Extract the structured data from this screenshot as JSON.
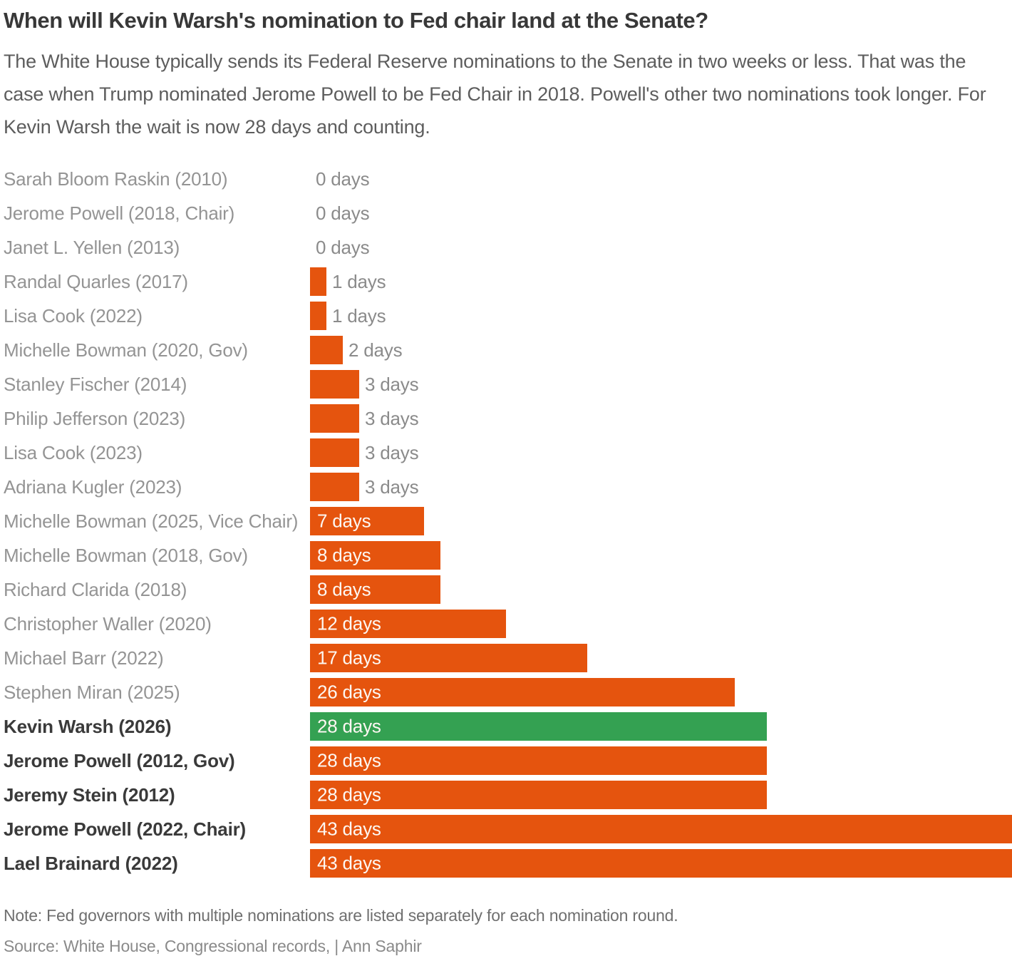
{
  "header": {
    "title": "When will Kevin Warsh's nomination to Fed chair land at the Senate?",
    "subtitle": "The White House typically sends its Federal Reserve nominations to the Senate in two weeks or less. That was the case when Trump nominated Jerome Powell to be Fed Chair in 2018. Powell's other two nominations took longer. For Kevin Warsh the wait is now 28 days and counting."
  },
  "footer": {
    "note": "Note: Fed governors with multiple nominations are listed separately for each nomination round.",
    "source": "Source: White House, Congressional records,  | Ann Saphir"
  },
  "colors": {
    "bar_orange": "#E5540E",
    "bar_green": "#34A152",
    "label_gray": "#949494",
    "label_dark": "#3a3a3a",
    "value_outside_gray": "#8b8b8b",
    "value_inside_white": "#fdf7f2"
  },
  "chart_data": {
    "type": "bar",
    "orientation": "horizontal",
    "unit": "days",
    "xlim": [
      0,
      43
    ],
    "legend": "none",
    "grid": false,
    "rows": [
      {
        "label": "Sarah Bloom Raskin (2010)",
        "days": 0,
        "value_label": "0 days",
        "bold": false,
        "highlight": false
      },
      {
        "label": "Jerome Powell (2018, Chair)",
        "days": 0,
        "value_label": "0 days",
        "bold": false,
        "highlight": false
      },
      {
        "label": "Janet L. Yellen (2013)",
        "days": 0,
        "value_label": "0 days",
        "bold": false,
        "highlight": false
      },
      {
        "label": "Randal Quarles (2017)",
        "days": 1,
        "value_label": "1 days",
        "bold": false,
        "highlight": false
      },
      {
        "label": "Lisa Cook (2022)",
        "days": 1,
        "value_label": "1 days",
        "bold": false,
        "highlight": false
      },
      {
        "label": "Michelle Bowman (2020, Gov)",
        "days": 2,
        "value_label": "2 days",
        "bold": false,
        "highlight": false
      },
      {
        "label": "Stanley Fischer (2014)",
        "days": 3,
        "value_label": "3 days",
        "bold": false,
        "highlight": false
      },
      {
        "label": "Philip Jefferson (2023)",
        "days": 3,
        "value_label": "3 days",
        "bold": false,
        "highlight": false
      },
      {
        "label": "Lisa Cook (2023)",
        "days": 3,
        "value_label": "3 days",
        "bold": false,
        "highlight": false
      },
      {
        "label": "Adriana Kugler (2023)",
        "days": 3,
        "value_label": "3 days",
        "bold": false,
        "highlight": false
      },
      {
        "label": "Michelle Bowman (2025, Vice Chair)",
        "days": 7,
        "value_label": "7 days",
        "bold": false,
        "highlight": false
      },
      {
        "label": "Michelle Bowman (2018, Gov)",
        "days": 8,
        "value_label": "8 days",
        "bold": false,
        "highlight": false
      },
      {
        "label": "Richard Clarida (2018)",
        "days": 8,
        "value_label": "8 days",
        "bold": false,
        "highlight": false
      },
      {
        "label": "Christopher Waller (2020)",
        "days": 12,
        "value_label": "12 days",
        "bold": false,
        "highlight": false
      },
      {
        "label": "Michael Barr (2022)",
        "days": 17,
        "value_label": "17 days",
        "bold": false,
        "highlight": false
      },
      {
        "label": "Stephen Miran (2025)",
        "days": 26,
        "value_label": "26 days",
        "bold": false,
        "highlight": false
      },
      {
        "label": "Kevin Warsh (2026)",
        "days": 28,
        "value_label": "28 days",
        "bold": true,
        "highlight": true
      },
      {
        "label": "Jerome Powell (2012, Gov)",
        "days": 28,
        "value_label": "28 days",
        "bold": true,
        "highlight": false
      },
      {
        "label": "Jeremy Stein (2012)",
        "days": 28,
        "value_label": "28 days",
        "bold": true,
        "highlight": false
      },
      {
        "label": "Jerome Powell (2022, Chair)",
        "days": 43,
        "value_label": "43 days",
        "bold": true,
        "highlight": false
      },
      {
        "label": "Lael Brainard (2022)",
        "days": 43,
        "value_label": "43 days",
        "bold": true,
        "highlight": false
      }
    ]
  }
}
